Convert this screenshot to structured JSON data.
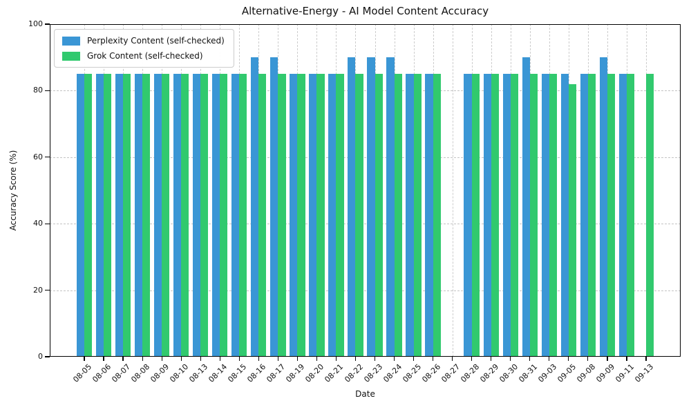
{
  "chart_data": {
    "type": "bar",
    "title": "Alternative-Energy - AI Model Content Accuracy",
    "xlabel": "Date",
    "ylabel": "Accuracy Score (%)",
    "ylim": [
      0,
      100
    ],
    "yticks": [
      0,
      20,
      40,
      60,
      80,
      100
    ],
    "grid": "both-dashed",
    "legend_position": "upper-left",
    "categories": [
      "08-05",
      "08-06",
      "08-07",
      "08-08",
      "08-09",
      "08-10",
      "08-13",
      "08-14",
      "08-15",
      "08-16",
      "08-17",
      "08-19",
      "08-20",
      "08-21",
      "08-22",
      "08-23",
      "08-24",
      "08-25",
      "08-26",
      "08-27",
      "08-28",
      "08-29",
      "08-30",
      "08-31",
      "09-03",
      "09-05",
      "09-08",
      "09-09",
      "09-11",
      "09-13"
    ],
    "series": [
      {
        "name": "Perplexity Content (self-checked)",
        "color": "#3a96d5",
        "values": [
          85,
          85,
          85,
          85,
          85,
          85,
          85,
          85,
          85,
          90,
          90,
          85,
          85,
          85,
          90,
          90,
          90,
          85,
          85,
          null,
          85,
          85,
          85,
          90,
          85,
          85,
          85,
          90,
          85,
          null
        ]
      },
      {
        "name": "Grok Content (self-checked)",
        "color": "#31c96e",
        "values": [
          85,
          85,
          85,
          85,
          85,
          85,
          85,
          85,
          85,
          85,
          85,
          85,
          85,
          85,
          85,
          85,
          85,
          85,
          85,
          null,
          85,
          85,
          85,
          85,
          85,
          82,
          85,
          85,
          85,
          85
        ]
      }
    ]
  }
}
